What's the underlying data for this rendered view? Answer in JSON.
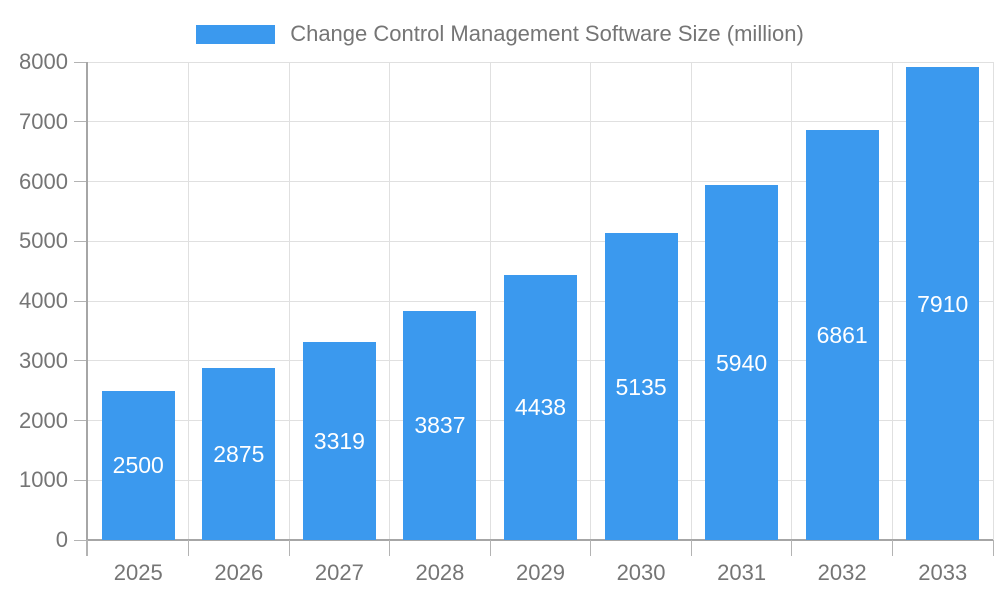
{
  "chart_data": {
    "type": "bar",
    "title": "Change Control Management Software Size (million)",
    "categories": [
      "2025",
      "2026",
      "2027",
      "2028",
      "2029",
      "2030",
      "2031",
      "2032",
      "2033"
    ],
    "values": [
      2500,
      2875,
      3319,
      3837,
      4438,
      5135,
      5940,
      6861,
      7910
    ],
    "xlabel": "",
    "ylabel": "",
    "ylim": [
      0,
      8000
    ],
    "ytick_step": 1000,
    "ytick_labels": [
      "0",
      "1000",
      "2000",
      "3000",
      "4000",
      "5000",
      "6000",
      "7000",
      "8000"
    ],
    "grid": true,
    "legend_position": "top",
    "value_labels": "inside-center",
    "colors": {
      "bar": "#3B99EE",
      "value_label": "#FFFFFF",
      "axis_text": "#757575",
      "grid": "#E0E0E0",
      "axis_line": "#A6A6A6",
      "tick": "#B3B3B3"
    }
  }
}
